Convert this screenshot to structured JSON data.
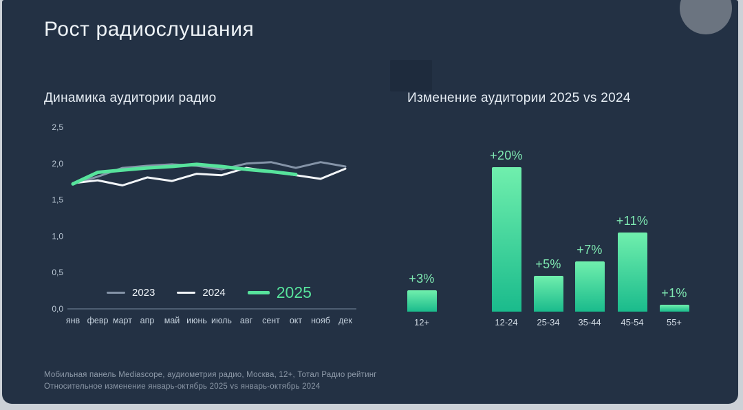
{
  "slide": {
    "title": "Рост радиослушания"
  },
  "colors": {
    "background": "#233144",
    "accent_green": "#57e39c",
    "pct_label_green": "#7fe9b2",
    "line_2023": "#8594a8",
    "line_2024": "#f2f5f8",
    "bar_gradient_top": "#70efad",
    "bar_gradient_bottom": "#1abb8c"
  },
  "chart_data": [
    {
      "type": "line",
      "title": "Динамика аудитории радио",
      "x": [
        "янв",
        "февр",
        "март",
        "апр",
        "май",
        "июнь",
        "июль",
        "авг",
        "сент",
        "окт",
        "нояб",
        "дек"
      ],
      "y_ticks": [
        "0,0",
        "0,5",
        "1,0",
        "1,5",
        "2,0",
        "2,5"
      ],
      "ylim": [
        0,
        2.5
      ],
      "grid": false,
      "legend_position": "bottom",
      "series": [
        {
          "name": "2023",
          "color": "#8594a8",
          "width": 3,
          "values": [
            1.72,
            1.82,
            1.94,
            1.97,
            1.99,
            1.97,
            1.92,
            2.0,
            2.02,
            1.94,
            2.02,
            1.96
          ]
        },
        {
          "name": "2024",
          "color": "#f2f5f8",
          "width": 3,
          "values": [
            1.73,
            1.77,
            1.7,
            1.81,
            1.76,
            1.86,
            1.84,
            1.94,
            1.89,
            1.84,
            1.79,
            1.93
          ]
        },
        {
          "name": "2025",
          "color": "#57e39c",
          "width": 5,
          "values": [
            1.72,
            1.88,
            1.91,
            1.94,
            1.96,
            1.99,
            1.96,
            1.92,
            1.89,
            1.85,
            null,
            null
          ]
        }
      ]
    },
    {
      "type": "bar",
      "title": "Изменение аудитории 2025 vs 2024",
      "categories": [
        "12+",
        "12-24",
        "25-34",
        "35-44",
        "45-54",
        "55+"
      ],
      "values": [
        3,
        20,
        5,
        7,
        11,
        1
      ],
      "labels": [
        "+3%",
        "+20%",
        "+5%",
        "+7%",
        "+11%",
        "+1%"
      ],
      "ylim": [
        0,
        21
      ],
      "bar_gradient": [
        "#70efad",
        "#1abb8c"
      ]
    }
  ],
  "footer": {
    "line1": "Мобильная панель Mediascope, аудиометрия радио, Москва, 12+, Тотал Радио рейтинг",
    "line2": "Относительное изменение январь-октябрь 2025 vs январь-октябрь 2024"
  }
}
